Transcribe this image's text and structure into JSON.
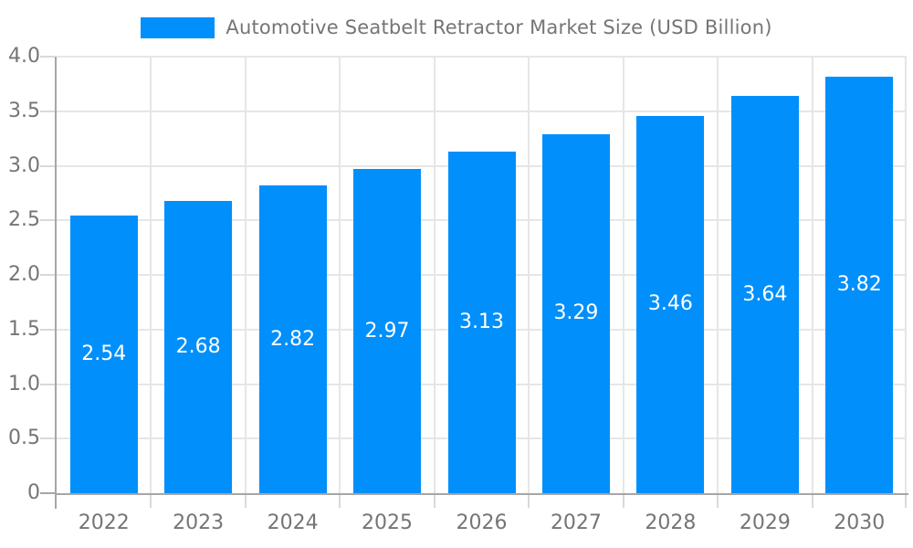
{
  "legend": {
    "label": "Automotive Seatbelt Retractor Market Size (USD Billion)"
  },
  "chart_data": {
    "type": "bar",
    "title": "Automotive Seatbelt Retractor Market Size (USD Billion)",
    "categories": [
      "2022",
      "2023",
      "2024",
      "2025",
      "2026",
      "2027",
      "2028",
      "2029",
      "2030"
    ],
    "values": [
      2.54,
      2.68,
      2.82,
      2.97,
      3.13,
      3.29,
      3.46,
      3.64,
      3.82
    ],
    "value_labels": [
      "2.54",
      "2.68",
      "2.82",
      "2.97",
      "3.13",
      "3.29",
      "3.46",
      "3.64",
      "3.82"
    ],
    "xlabel": "",
    "ylabel": "",
    "ylim": [
      0,
      4
    ],
    "ytick_step": 0.5,
    "ytick_labels": [
      "0",
      "0.5",
      "1.0",
      "1.5",
      "2.0",
      "2.5",
      "3.0",
      "3.5",
      "4.0"
    ],
    "grid": true,
    "legend_position": "top",
    "colors": {
      "bar": "#008FFB",
      "grid": "#e6e6e6",
      "axis_line": "#a6a6a6",
      "tick": "#d9d9d9",
      "axis_text": "#757575",
      "value_text": "#ffffff",
      "background": "#ffffff"
    }
  }
}
